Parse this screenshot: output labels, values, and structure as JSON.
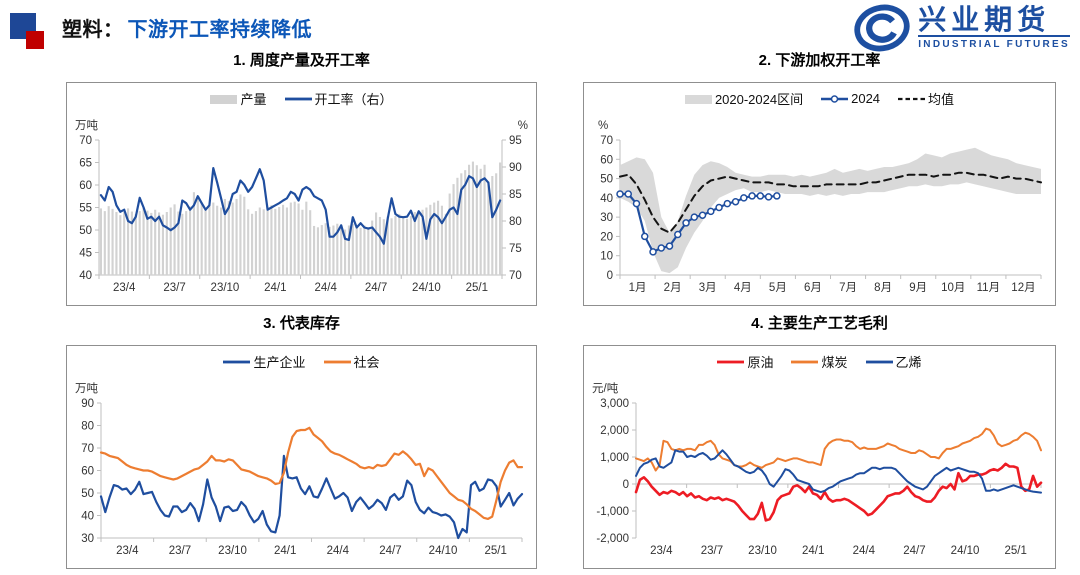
{
  "header": {
    "topic": "塑料：",
    "title": "下游开工率持续降低",
    "logo_cn": "兴业期货",
    "logo_en": "INDUSTRIAL FUTURES"
  },
  "colors": {
    "accent_blue": "#0C57B8",
    "mark_blue": "#1E4796",
    "mark_red": "#C00000",
    "logo_blue": "#1D4FA1",
    "line_blue": "#1F4E9F",
    "orange": "#ED7D31",
    "red": "#ED1C24",
    "bar_gray": "#D2D2D2",
    "band_gray": "#D9D9D9",
    "mean_black": "#141414",
    "axis_gray": "#BFBFBF",
    "tick_text": "#333333"
  },
  "chart_data": [
    {
      "type": "bar_line",
      "title": "1. 周度产量及开工率",
      "ylabel": "万吨",
      "y2label": "%",
      "ylim": [
        40,
        70
      ],
      "ystep": 5,
      "y2lim": [
        70,
        95
      ],
      "y2step": 5,
      "grid": false,
      "legend_position": "top",
      "x_ticks": [
        "23/4",
        "23/7",
        "23/10",
        "24/1",
        "24/4",
        "24/7",
        "24/10",
        "25/1"
      ],
      "series": [
        {
          "name": "产量",
          "legend_kind": "bar",
          "color": "#D2D2D2",
          "axis": "left",
          "values": [
            54.8,
            54.2,
            55.3,
            54.7,
            54.0,
            53.3,
            54.0,
            54.8,
            54.1,
            53.5,
            54.2,
            54.9,
            54.3,
            53.8,
            54.5,
            53.9,
            53.4,
            54.0,
            55.0,
            55.7,
            54.1,
            53.6,
            54.2,
            55.2,
            58.4,
            56.9,
            56.2,
            54.4,
            55.6,
            56.1,
            55.4,
            55.0,
            56.9,
            56.4,
            56.1,
            56.9,
            57.9,
            57.4,
            54.6,
            53.6,
            54.2,
            55.0,
            54.6,
            55.1,
            55.5,
            54.7,
            55.1,
            55.6,
            55.0,
            56.1,
            56.3,
            55.9,
            54.5,
            56.3,
            54.4,
            50.9,
            50.6,
            51.1,
            51.5,
            50.7,
            51.0,
            51.4,
            50.6,
            50.1,
            51.0,
            51.4,
            50.9,
            50.5,
            51.0,
            50.6,
            52.1,
            53.9,
            52.9,
            52.4,
            53.0,
            52.6,
            53.1,
            53.5,
            52.9,
            52.5,
            53.1,
            54.0,
            53.6,
            54.5,
            55.0,
            55.6,
            56.1,
            56.5,
            55.4,
            53.6,
            58.1,
            60.2,
            61.6,
            62.6,
            63.3,
            64.5,
            65.2,
            64.4,
            63.6,
            64.5,
            60.8,
            62.0,
            62.6,
            65.0
          ]
        },
        {
          "name": "开工率（右）",
          "legend_kind": "line",
          "color": "#1F4E9F",
          "axis": "right",
          "width": 2.2,
          "values": [
            84.8,
            83.8,
            86.3,
            85.4,
            82.9,
            81.7,
            82.1,
            80.0,
            79.6,
            80.8,
            84.3,
            82.5,
            80.4,
            80.8,
            80.0,
            80.8,
            79.2,
            78.8,
            78.3,
            78.8,
            79.6,
            83.8,
            83.3,
            82.1,
            82.9,
            84.6,
            83.3,
            82.1,
            82.9,
            89.8,
            87.1,
            84.2,
            81.3,
            82.5,
            85.0,
            85.4,
            87.5,
            86.7,
            85.4,
            86.3,
            87.9,
            89.6,
            87.5,
            82.1,
            82.5,
            82.9,
            83.3,
            83.8,
            84.2,
            85.4,
            85.0,
            83.8,
            85.8,
            86.3,
            85.8,
            84.6,
            84.2,
            83.8,
            82.1,
            77.1,
            77.1,
            77.9,
            79.2,
            76.7,
            76.5,
            80.7,
            78.8,
            79.6,
            78.8,
            78.6,
            78.8,
            77.9,
            77.1,
            75.8,
            80.4,
            84.2,
            81.3,
            80.8,
            80.7,
            80.8,
            81.9,
            80.0,
            81.8,
            80.8,
            76.7,
            80.3,
            81.3,
            80.7,
            79.6,
            80.8,
            82.1,
            82.5,
            81.3,
            85.8,
            86.7,
            88.3,
            87.9,
            86.3,
            87.5,
            87.9,
            87.1,
            80.7,
            82.1,
            83.8
          ]
        }
      ]
    },
    {
      "type": "band_lines",
      "title": "2. 下游加权开工率",
      "ylabel": "%",
      "ylim": [
        0,
        70
      ],
      "ystep": 10,
      "grid": false,
      "legend_position": "top",
      "x_ticks": [
        "1月",
        "2月",
        "3月",
        "4月",
        "5月",
        "6月",
        "7月",
        "8月",
        "9月",
        "10月",
        "11月",
        "12月"
      ],
      "band": {
        "name": "2020-2024区间",
        "color": "#D9D9D9",
        "upper": [
          57,
          59,
          61,
          60,
          53,
          30,
          22,
          28,
          41,
          52,
          57,
          59,
          58,
          56,
          53,
          52,
          51,
          51,
          52,
          52,
          52,
          51,
          52,
          51,
          52,
          53,
          55,
          53,
          54,
          55,
          54,
          55,
          56,
          56,
          57,
          58,
          60,
          63,
          62,
          61,
          63,
          64,
          65,
          66,
          64,
          62,
          61,
          60,
          58,
          57,
          56,
          55
        ],
        "lower": [
          40,
          38,
          35,
          28,
          12,
          2,
          1,
          4,
          14,
          22,
          28,
          35,
          40,
          42,
          44,
          45,
          43,
          43,
          44,
          43,
          42,
          42,
          42,
          41,
          42,
          41,
          42,
          41,
          42,
          42,
          43,
          43,
          43,
          44,
          45,
          46,
          46,
          47,
          46,
          46,
          47,
          47,
          48,
          47,
          46,
          45,
          44,
          43,
          42,
          42,
          42,
          42
        ]
      },
      "series": [
        {
          "name": "2024",
          "legend_kind": "line_marker",
          "color": "#1F4E9F",
          "width": 2.2,
          "values": [
            42,
            42,
            37,
            20,
            12,
            14,
            15,
            21,
            27,
            30,
            31,
            33,
            35,
            37,
            38,
            40,
            41,
            41,
            40.5,
            41
          ]
        },
        {
          "name": "均值",
          "legend_kind": "dashed",
          "color": "#141414",
          "width": 2,
          "values": [
            51,
            52,
            47,
            39,
            30,
            24,
            22,
            27,
            34,
            41,
            46,
            49,
            50,
            51,
            50,
            49,
            48,
            48,
            48,
            47,
            47,
            46,
            46,
            46,
            46,
            47,
            47,
            47,
            47,
            47,
            48,
            48,
            49,
            50,
            51,
            52,
            52,
            52,
            51,
            52,
            52,
            53,
            53,
            52,
            52,
            51,
            50,
            51,
            50,
            50,
            49,
            48
          ]
        }
      ]
    },
    {
      "type": "lines",
      "title": "3. 代表库存",
      "ylabel": "万吨",
      "ylim": [
        30,
        90
      ],
      "ystep": 10,
      "grid": false,
      "legend_position": "top",
      "x_ticks": [
        "23/4",
        "23/7",
        "23/10",
        "24/1",
        "24/4",
        "24/7",
        "24/10",
        "25/1"
      ],
      "series": [
        {
          "name": "生产企业",
          "legend_kind": "line",
          "color": "#1F4E9F",
          "width": 2.2,
          "values": [
            48.5,
            41.5,
            48,
            53.5,
            53,
            51.5,
            52,
            49.5,
            51.5,
            55,
            49.5,
            50,
            50.5,
            46,
            42.5,
            40,
            39.5,
            44,
            44,
            41.5,
            42.5,
            45.5,
            43,
            37.5,
            45,
            56,
            48,
            44,
            37.5,
            43.5,
            44,
            42,
            42.5,
            46,
            44,
            40,
            37,
            38.5,
            42,
            36,
            33,
            32.5,
            40,
            66.5,
            57,
            56.5,
            57,
            52,
            49.5,
            53,
            48.5,
            48,
            52,
            56.5,
            52,
            47.5,
            48.5,
            50,
            48,
            42,
            46,
            48,
            45.5,
            43,
            44.5,
            47,
            45.5,
            42.5,
            48,
            49.5,
            47,
            48.5,
            55.5,
            53.5,
            46,
            42.5,
            41,
            43.5,
            41.5,
            41,
            40,
            40.5,
            39.5,
            37,
            30,
            34,
            32.5,
            53.5,
            55,
            51,
            52,
            56,
            55.5,
            53,
            44,
            47,
            50,
            44.5,
            47.5,
            49.5
          ]
        },
        {
          "name": "社会",
          "legend_kind": "line",
          "color": "#ED7D31",
          "width": 2.2,
          "values": [
            68,
            67.5,
            66.5,
            66,
            65.5,
            64,
            62.5,
            61.5,
            61,
            60.5,
            60,
            60,
            59.5,
            58.5,
            57.5,
            57,
            56.5,
            56,
            56.5,
            57.5,
            58.5,
            59.5,
            60.5,
            61,
            62.5,
            64,
            66.5,
            64.5,
            64.5,
            64,
            65,
            64.5,
            62.5,
            60.5,
            60,
            59.5,
            58.5,
            57.5,
            57,
            56.5,
            55.5,
            54,
            54.5,
            59,
            68,
            75,
            77.5,
            78,
            78,
            79,
            76,
            74.5,
            73,
            70.5,
            68.5,
            67.5,
            67,
            66,
            65,
            64,
            63,
            61.5,
            61,
            61.5,
            61,
            62.5,
            62,
            62.5,
            65,
            67.5,
            67,
            68.5,
            67,
            65,
            62.5,
            63,
            57.5,
            61,
            60,
            57.5,
            55,
            52.5,
            50,
            48.5,
            47,
            46.5,
            45,
            43,
            42,
            40.5,
            39,
            38.5,
            39.5,
            47,
            55,
            60,
            63.5,
            64.5,
            61.5,
            61.5
          ]
        }
      ]
    },
    {
      "type": "lines",
      "title": "4. 主要生产工艺毛利",
      "ylabel": "元/吨",
      "ylim": [
        -2000,
        3000
      ],
      "ystep": 1000,
      "number_format": "comma",
      "zero_axis": true,
      "grid": false,
      "legend_position": "top",
      "x_ticks": [
        "23/4",
        "23/7",
        "23/10",
        "24/1",
        "24/4",
        "24/7",
        "24/10",
        "25/1"
      ],
      "series": [
        {
          "name": "原油",
          "legend_kind": "line",
          "color": "#ED1C24",
          "width": 2.6,
          "values": [
            -300,
            150,
            250,
            100,
            -100,
            -250,
            -400,
            -300,
            -350,
            -250,
            -300,
            -400,
            -300,
            -450,
            -350,
            -500,
            -450,
            -550,
            -600,
            -500,
            -550,
            -500,
            -600,
            -550,
            -600,
            -650,
            -800,
            -1000,
            -1150,
            -1300,
            -1300,
            -1100,
            -700,
            -1350,
            -1300,
            -1050,
            -600,
            -450,
            -400,
            -350,
            -100,
            -50,
            -150,
            -300,
            -100,
            -350,
            -400,
            -550,
            -300,
            -550,
            -650,
            -600,
            -600,
            -550,
            -600,
            -700,
            -800,
            -900,
            -1000,
            -1150,
            -1100,
            -950,
            -800,
            -650,
            -450,
            -400,
            -350,
            -350,
            -250,
            -100,
            -300,
            -450,
            -500,
            -600,
            -650,
            -650,
            -500,
            -250,
            -100,
            -150,
            0,
            -200,
            400,
            100,
            150,
            300,
            300,
            350,
            350,
            400,
            500,
            550,
            500,
            600,
            750,
            650,
            650,
            600,
            -100,
            -250,
            -200,
            300,
            -100,
            50
          ]
        },
        {
          "name": "煤炭",
          "legend_kind": "line",
          "color": "#ED7D31",
          "width": 2,
          "values": [
            950,
            900,
            850,
            950,
            800,
            500,
            700,
            1600,
            1550,
            1300,
            1250,
            1300,
            1250,
            1300,
            1300,
            1250,
            1450,
            1450,
            1550,
            1600,
            1450,
            1100,
            950,
            900,
            850,
            700,
            650,
            650,
            700,
            800,
            700,
            650,
            600,
            700,
            750,
            800,
            950,
            900,
            850,
            900,
            950,
            950,
            900,
            850,
            800,
            800,
            750,
            700,
            1300,
            1500,
            1600,
            1650,
            1650,
            1600,
            1600,
            1550,
            1400,
            1300,
            1350,
            1300,
            1300,
            1300,
            1350,
            1400,
            1500,
            1450,
            1400,
            1300,
            1250,
            1200,
            1150,
            1150,
            1250,
            1200,
            1100,
            1000,
            1000,
            950,
            1150,
            1300,
            1300,
            1350,
            1400,
            1500,
            1550,
            1600,
            1700,
            1750,
            1850,
            2050,
            2000,
            1800,
            1500,
            1400,
            1450,
            1500,
            1600,
            1650,
            1800,
            1900,
            1850,
            1750,
            1600,
            1250
          ]
        },
        {
          "name": "乙烯",
          "legend_kind": "line",
          "color": "#1F4E9F",
          "width": 2,
          "values": [
            300,
            600,
            750,
            800,
            900,
            950,
            650,
            600,
            700,
            800,
            1250,
            1200,
            1200,
            1000,
            1050,
            1000,
            1100,
            1150,
            1050,
            900,
            950,
            1100,
            1250,
            1100,
            900,
            700,
            650,
            550,
            450,
            400,
            450,
            600,
            500,
            300,
            0,
            -100,
            100,
            300,
            550,
            500,
            350,
            150,
            100,
            50,
            0,
            -200,
            -250,
            -300,
            -250,
            -150,
            -100,
            0,
            100,
            150,
            200,
            250,
            350,
            400,
            400,
            500,
            600,
            600,
            550,
            600,
            600,
            600,
            550,
            400,
            250,
            100,
            0,
            -100,
            -150,
            -200,
            -100,
            100,
            300,
            400,
            500,
            600,
            500,
            550,
            600,
            550,
            500,
            450,
            450,
            400,
            200,
            -250,
            -250,
            -200,
            -250,
            -200,
            -150,
            -100,
            -50,
            -100,
            -150,
            -200,
            -250,
            -280,
            -300,
            -320
          ]
        }
      ]
    }
  ]
}
